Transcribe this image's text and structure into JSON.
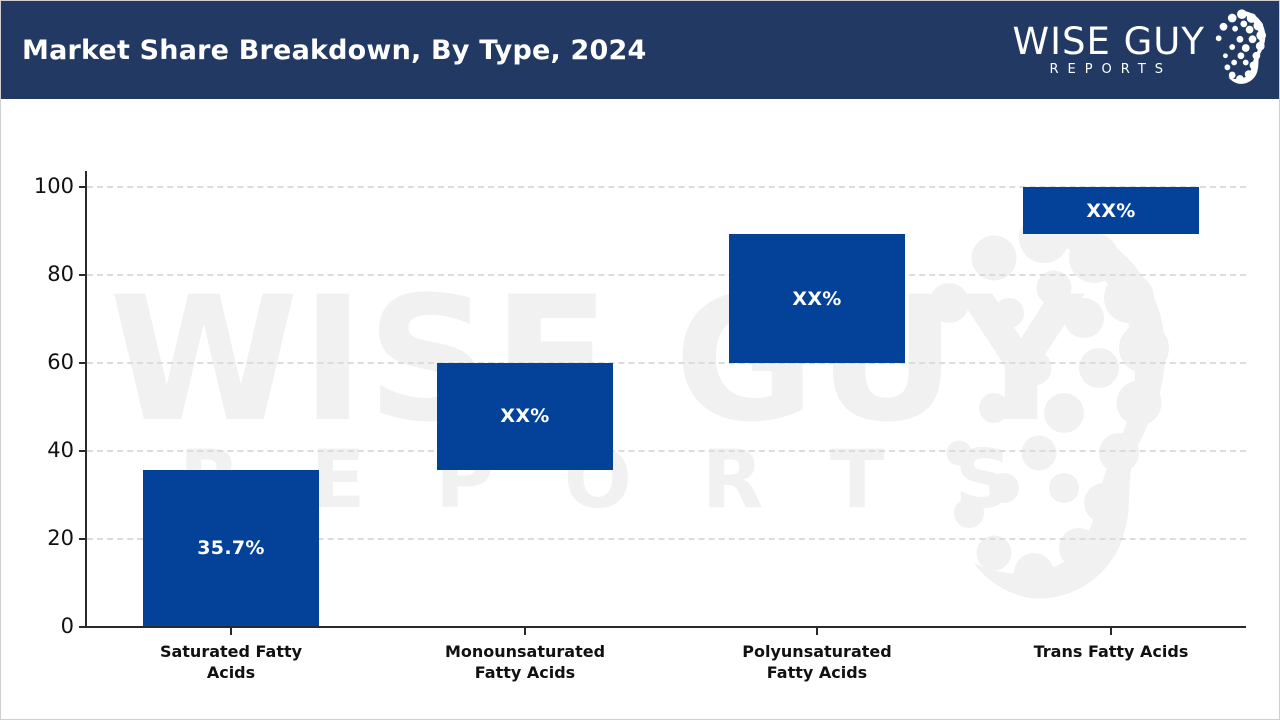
{
  "header": {
    "title": "Market Share Breakdown, By Type, 2024",
    "logo": {
      "line1": "WISE GUY",
      "line2": "REPORTS"
    },
    "bg_color": "#223a63"
  },
  "watermark": {
    "line1": "WISE GUY",
    "line2": "REPORTS"
  },
  "chart_data": {
    "type": "bar",
    "subtype": "floating-waterfall",
    "title": "Market Share Breakdown, By Type, 2024",
    "categories": [
      [
        "Saturated Fatty",
        "Acids"
      ],
      [
        "Monounsaturated",
        "Fatty Acids"
      ],
      [
        "Polyunsaturated",
        "Fatty Acids"
      ],
      [
        "Trans Fatty Acids"
      ]
    ],
    "segments": [
      {
        "category": "Saturated Fatty Acids",
        "start": 0,
        "end": 35.7,
        "label": "35.7%"
      },
      {
        "category": "Monounsaturated Fatty Acids",
        "start": 35.7,
        "end": 60.0,
        "label": "XX%"
      },
      {
        "category": "Polyunsaturated Fatty Acids",
        "start": 60.0,
        "end": 89.3,
        "label": "XX%"
      },
      {
        "category": "Trans Fatty Acids",
        "start": 89.3,
        "end": 100.0,
        "label": "XX%"
      }
    ],
    "yticks": [
      0,
      20,
      40,
      60,
      80,
      100
    ],
    "ylim": [
      0,
      103.6
    ],
    "xlabel": "",
    "ylabel": "",
    "grid": "horizontal-dashed",
    "legend": "none",
    "bar_color": "#04429a",
    "bar_label_color": "#ffffff",
    "axis_color": "#2a2a2a",
    "grid_color": "#dcdcdc"
  }
}
